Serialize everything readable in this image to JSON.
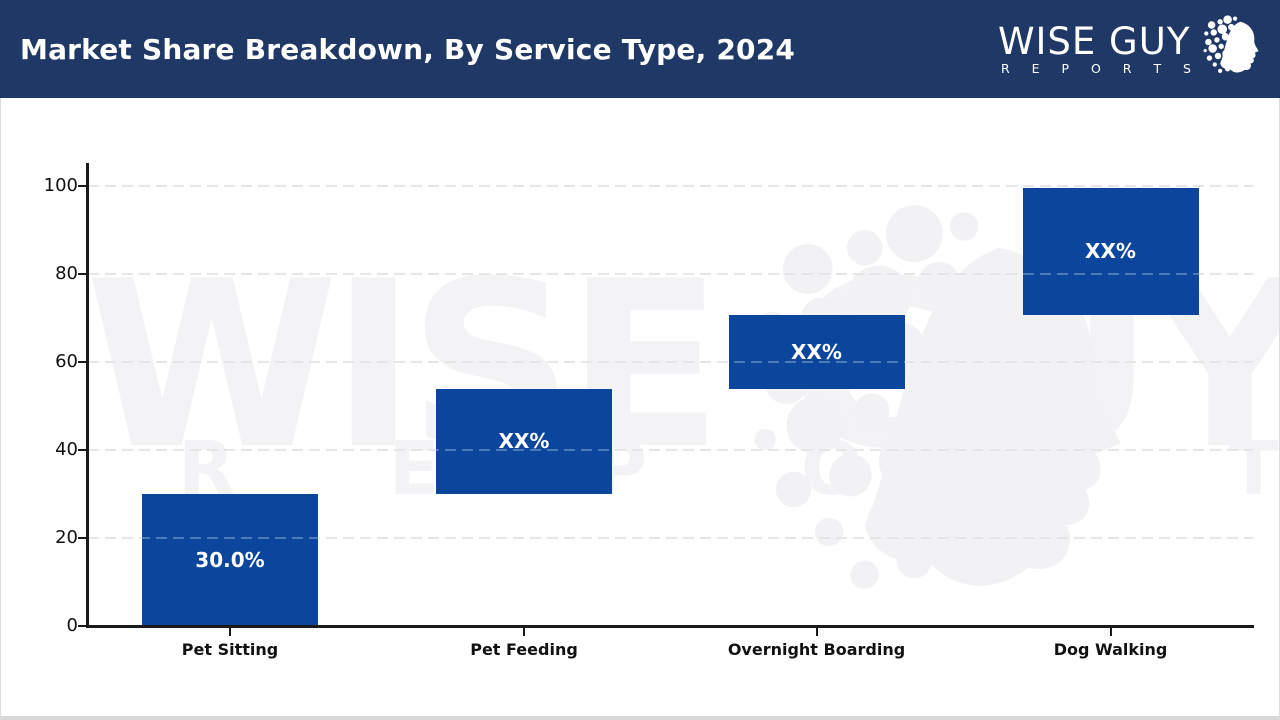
{
  "header": {
    "title": "Market Share Breakdown, By Service Type, 2024",
    "bg_color": "#203866",
    "text_color": "#ffffff",
    "logo": {
      "line1": "WISE GUY",
      "line2": "R E P O R T S"
    }
  },
  "watermark": {
    "line1": "WISE GUY",
    "line2": "R E P O R T S"
  },
  "chart_data": {
    "type": "bar",
    "subtype": "floating-waterfall",
    "title": "Market Share Breakdown, By Service Type, 2024",
    "categories": [
      "Pet Sitting",
      "Pet Feeding",
      "Overnight Boarding",
      "Dog Walking"
    ],
    "segments": [
      {
        "category": "Pet Sitting",
        "start": 0,
        "end": 30,
        "label": "30.0%"
      },
      {
        "category": "Pet Feeding",
        "start": 30,
        "end": 53.9,
        "label": "XX%"
      },
      {
        "category": "Overnight Boarding",
        "start": 53.9,
        "end": 70.7,
        "label": "XX%"
      },
      {
        "category": "Dog Walking",
        "start": 70.7,
        "end": 99.6,
        "label": "XX%"
      }
    ],
    "xlabel": "",
    "ylabel": "",
    "ylim": [
      0,
      100
    ],
    "yticks": [
      0,
      20,
      40,
      60,
      80,
      100
    ],
    "grid": {
      "axis": "y",
      "style": "dashed",
      "color": "#dcdcdc",
      "over_bar_tint": "rgba(255,255,255,0.28)"
    },
    "legend": "none",
    "bar_color": "#0b469c",
    "bar_label_color": "#ffffff",
    "axis_color": "#1a1a1a"
  }
}
